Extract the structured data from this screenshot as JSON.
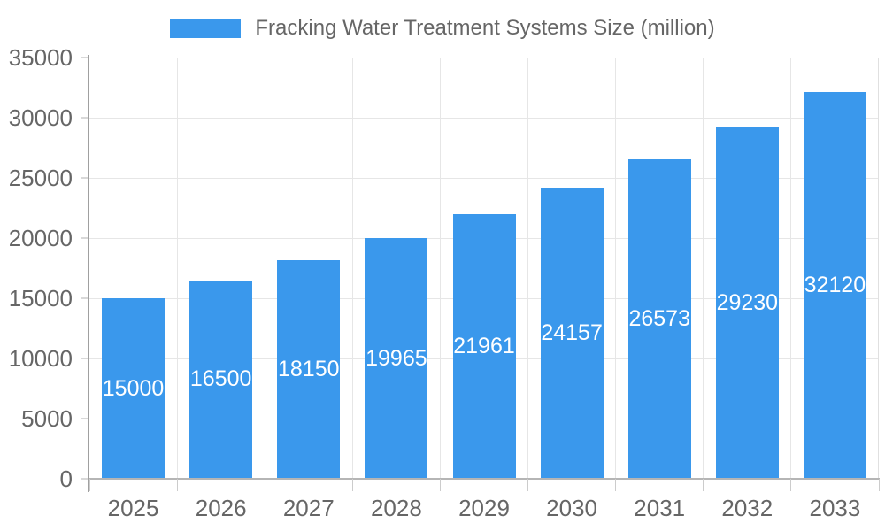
{
  "chart_data": {
    "type": "bar",
    "title": "Fracking Water Treatment Systems Size (million)",
    "legend": {
      "label": "Fracking Water Treatment Systems Size (million)",
      "position": "top-center"
    },
    "categories": [
      "2025",
      "2026",
      "2027",
      "2028",
      "2029",
      "2030",
      "2031",
      "2032",
      "2033"
    ],
    "values": [
      15000,
      16500,
      18150,
      19965,
      21961,
      24157,
      26573,
      29230,
      32120
    ],
    "data_labels": [
      "15000",
      "16500",
      "18150",
      "19965",
      "21961",
      "24157",
      "26573",
      "29230",
      "32120"
    ],
    "xlabel": "",
    "ylabel": "",
    "ylim": [
      0,
      35000
    ],
    "yticks": [
      0,
      5000,
      10000,
      15000,
      20000,
      25000,
      30000,
      35000
    ],
    "grid": true,
    "colors": {
      "bar": "#3a98ec",
      "bar_label_text": "#ffffff",
      "axis_text": "#666666",
      "gridline": "#e6e6e6",
      "y_axis_line": "#a0a0a0",
      "x_axis_line": "#b5b5b5",
      "background": "#ffffff"
    }
  }
}
